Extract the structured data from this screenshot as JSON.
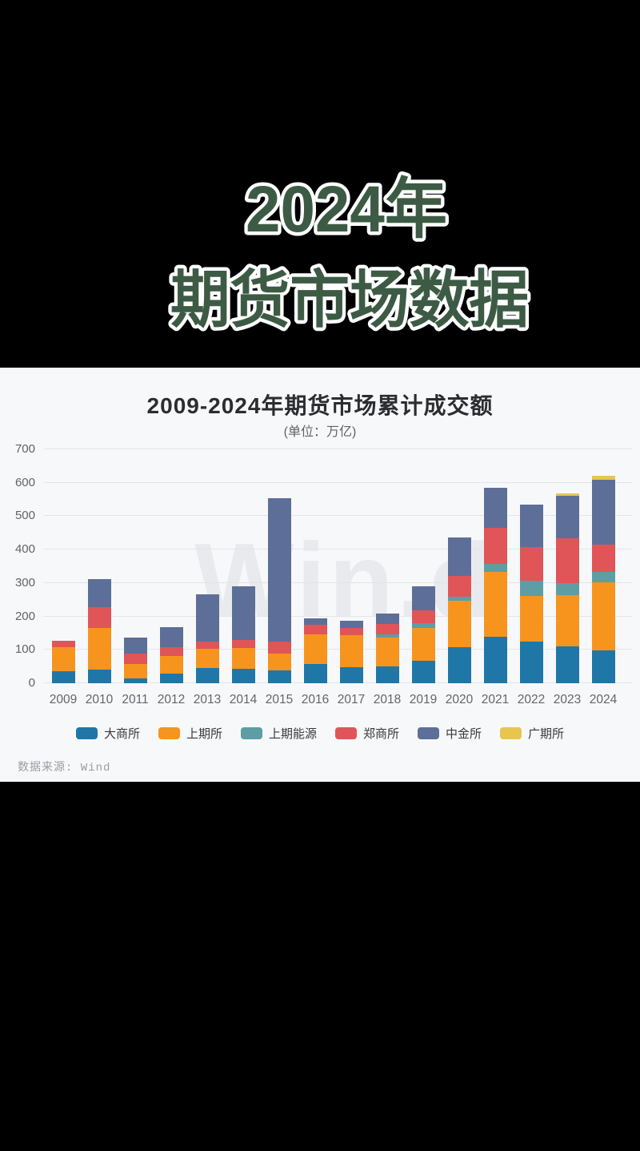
{
  "page": {
    "background": "#000000",
    "header": {
      "line1": "2024年",
      "line2": "期货市场数据",
      "text_color": "#3d5b44",
      "outline_color": "#ffffff"
    },
    "watermark": "Win.d",
    "source": "数据来源: Wind"
  },
  "chart_data": {
    "type": "bar",
    "stacked": true,
    "title": "2009-2024年期货市场累计成交额",
    "subtitle": "(单位：万亿)",
    "categories": [
      "2009",
      "2010",
      "2011",
      "2012",
      "2013",
      "2014",
      "2015",
      "2016",
      "2017",
      "2018",
      "2019",
      "2020",
      "2021",
      "2022",
      "2023",
      "2024"
    ],
    "series": [
      {
        "name": "大商所",
        "color": "#1F77A8",
        "values": [
          35,
          40,
          15,
          30,
          45,
          42,
          39,
          58,
          47,
          50,
          66,
          107,
          140,
          125,
          110,
          98
        ]
      },
      {
        "name": "上期所",
        "color": "#F7941E",
        "values": [
          73,
          125,
          43,
          51,
          58,
          63,
          50,
          89,
          96,
          87,
          99,
          139,
          193,
          137,
          153,
          205
        ]
      },
      {
        "name": "上期能源",
        "color": "#5C9EA4",
        "values": [
          0,
          0,
          0,
          0,
          0,
          0,
          0,
          0,
          0,
          10,
          14,
          12,
          24,
          44,
          37,
          30
        ]
      },
      {
        "name": "郑商所",
        "color": "#E05558",
        "values": [
          20,
          62,
          31,
          26,
          22,
          24,
          36,
          29,
          22,
          30,
          39,
          64,
          107,
          101,
          133,
          83
        ]
      },
      {
        "name": "中金所",
        "color": "#5D6F98",
        "values": [
          0,
          85,
          48,
          62,
          142,
          162,
          428,
          19,
          22,
          32,
          72,
          114,
          120,
          128,
          127,
          193
        ]
      },
      {
        "name": "广期所",
        "color": "#E6C64F",
        "values": [
          0,
          0,
          0,
          0,
          0,
          0,
          0,
          0,
          0,
          0,
          0,
          0,
          0,
          0,
          9,
          12
        ]
      }
    ],
    "totals": [
      128,
      312,
      137,
      169,
      267,
      291,
      553,
      195,
      187,
      209,
      290,
      436,
      584,
      535,
      569,
      621
    ],
    "ylim": [
      0,
      700
    ],
    "yticks": [
      0,
      100,
      200,
      300,
      400,
      500,
      600,
      700
    ],
    "grid": true,
    "legend_position": "bottom"
  }
}
